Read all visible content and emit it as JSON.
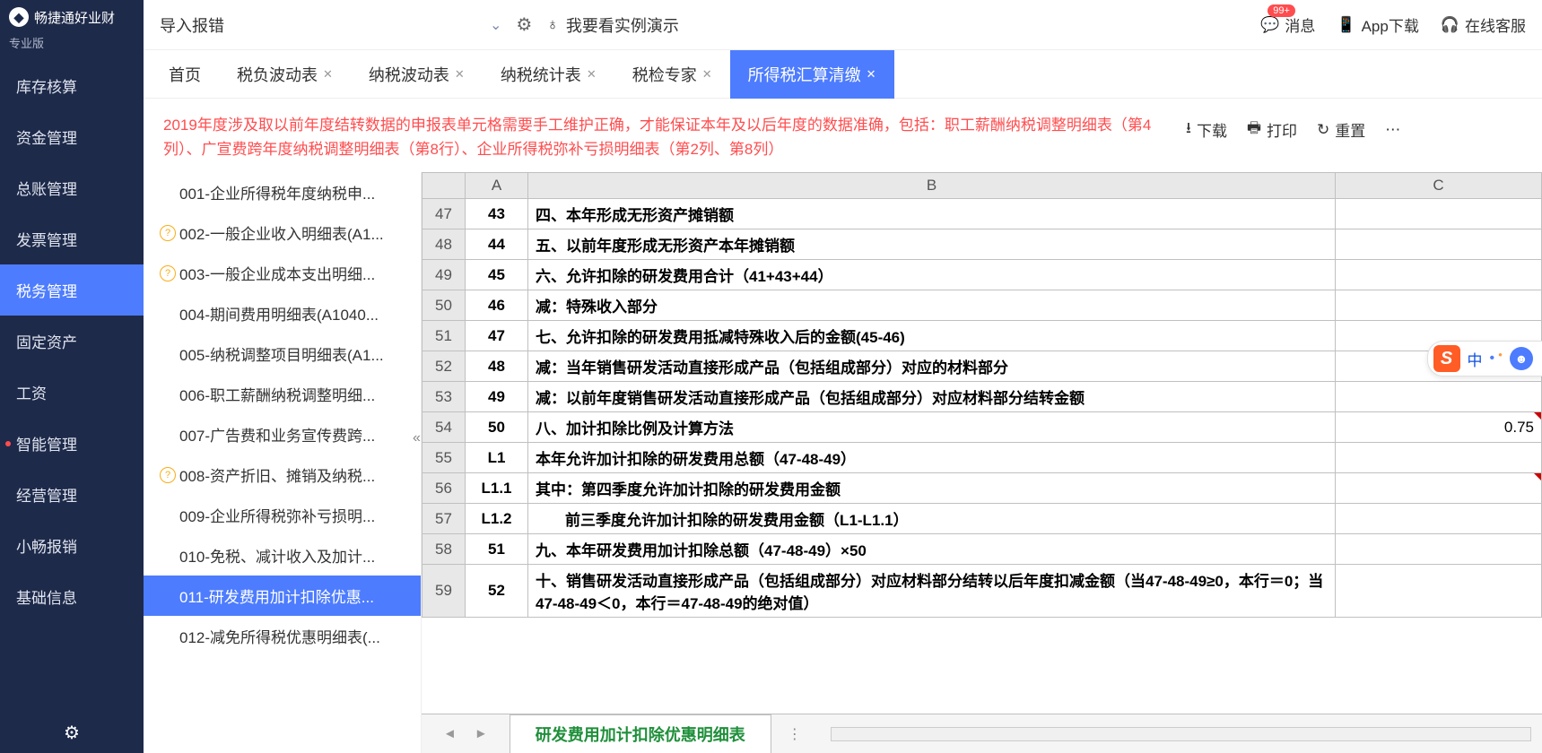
{
  "brand": {
    "name": "畅捷通好业财",
    "edition": "专业版"
  },
  "sidebar": [
    {
      "label": "库存核算",
      "active": false
    },
    {
      "label": "资金管理",
      "active": false
    },
    {
      "label": "总账管理",
      "active": false
    },
    {
      "label": "发票管理",
      "active": false
    },
    {
      "label": "税务管理",
      "active": true
    },
    {
      "label": "固定资产",
      "active": false
    },
    {
      "label": "工资",
      "active": false
    },
    {
      "label": "智能管理",
      "active": false,
      "dot": true
    },
    {
      "label": "经营管理",
      "active": false
    },
    {
      "label": "小畅报销",
      "active": false
    },
    {
      "label": "基础信息",
      "active": false
    }
  ],
  "topbar": {
    "import_label": "导入报错",
    "demo_label": "我要看实例演示",
    "actions": {
      "message": "消息",
      "message_badge": "99+",
      "app_download": "App下载",
      "online_cs": "在线客服"
    }
  },
  "tabs": [
    {
      "label": "首页",
      "closable": false,
      "active": false
    },
    {
      "label": "税负波动表",
      "closable": true,
      "active": false
    },
    {
      "label": "纳税波动表",
      "closable": true,
      "active": false
    },
    {
      "label": "纳税统计表",
      "closable": true,
      "active": false
    },
    {
      "label": "税检专家",
      "closable": true,
      "active": false
    },
    {
      "label": "所得税汇算清缴",
      "closable": true,
      "active": true
    }
  ],
  "notice": "2019年度涉及取以前年度结转数据的申报表单元格需要手工维护正确，才能保证本年及以后年度的数据准确，包括：职工薪酬纳税调整明细表（第4列）、广宣费跨年度纳税调整明细表（第8行）、企业所得税弥补亏损明细表（第2列、第8列）",
  "toolbar": {
    "download": "下载",
    "print": "打印",
    "reset": "重置"
  },
  "form_list": [
    {
      "label": "001-企业所得税年度纳税申...",
      "icon": false,
      "active": false
    },
    {
      "label": "002-一般企业收入明细表(A1...",
      "icon": true,
      "active": false
    },
    {
      "label": "003-一般企业成本支出明细...",
      "icon": true,
      "active": false
    },
    {
      "label": "004-期间费用明细表(A1040...",
      "icon": false,
      "active": false
    },
    {
      "label": "005-纳税调整项目明细表(A1...",
      "icon": false,
      "active": false
    },
    {
      "label": "006-职工薪酬纳税调整明细...",
      "icon": false,
      "active": false
    },
    {
      "label": "007-广告费和业务宣传费跨...",
      "icon": false,
      "active": false
    },
    {
      "label": "008-资产折旧、摊销及纳税...",
      "icon": true,
      "active": false
    },
    {
      "label": "009-企业所得税弥补亏损明...",
      "icon": false,
      "active": false
    },
    {
      "label": "010-免税、减计收入及加计...",
      "icon": false,
      "active": false
    },
    {
      "label": "011-研发费用加计扣除优惠...",
      "icon": false,
      "active": true
    },
    {
      "label": "012-减免所得税优惠明细表(...",
      "icon": false,
      "active": false
    }
  ],
  "sheet": {
    "columns": [
      "A",
      "B",
      "C"
    ],
    "rows": [
      {
        "rn": "47",
        "a": "43",
        "b": "四、本年形成无形资产摊销额",
        "c": "",
        "mark": false
      },
      {
        "rn": "48",
        "a": "44",
        "b": "五、以前年度形成无形资产本年摊销额",
        "c": "",
        "mark": false
      },
      {
        "rn": "49",
        "a": "45",
        "b": "六、允许扣除的研发费用合计（41+43+44）",
        "c": "",
        "mark": false
      },
      {
        "rn": "50",
        "a": "46",
        "b": "减：特殊收入部分",
        "c": "",
        "mark": false
      },
      {
        "rn": "51",
        "a": "47",
        "b": "七、允许扣除的研发费用抵减特殊收入后的金额(45-46)",
        "c": "",
        "mark": false
      },
      {
        "rn": "52",
        "a": "48",
        "b": "减：当年销售研发活动直接形成产品（包括组成部分）对应的材料部分",
        "c": "",
        "mark": false
      },
      {
        "rn": "53",
        "a": "49",
        "b": "减：以前年度销售研发活动直接形成产品（包括组成部分）对应材料部分结转金额",
        "c": "",
        "mark": false
      },
      {
        "rn": "54",
        "a": "50",
        "b": "八、加计扣除比例及计算方法",
        "c": "0.75",
        "mark": true
      },
      {
        "rn": "55",
        "a": "L1",
        "b": "本年允许加计扣除的研发费用总额（47-48-49）",
        "c": "",
        "mark": false
      },
      {
        "rn": "56",
        "a": "L1.1",
        "b": "其中：第四季度允许加计扣除的研发费用金额",
        "c": "",
        "mark": true
      },
      {
        "rn": "57",
        "a": "L1.2",
        "b": "       前三季度允许加计扣除的研发费用金额（L1-L1.1）",
        "c": "",
        "mark": false
      },
      {
        "rn": "58",
        "a": "51",
        "b": "九、本年研发费用加计扣除总额（47-48-49）×50",
        "c": "",
        "mark": false
      },
      {
        "rn": "59",
        "a": "52",
        "b": "十、销售研发活动直接形成产品（包括组成部分）对应材料部分结转以后年度扣减金额（当47-48-49≥0，本行＝0；当47-48-49＜0，本行＝47-48-49的绝对值）",
        "c": "",
        "mark": false
      }
    ],
    "active_tab": "研发费用加计扣除优惠明细表"
  },
  "float": {
    "cn": "中"
  }
}
